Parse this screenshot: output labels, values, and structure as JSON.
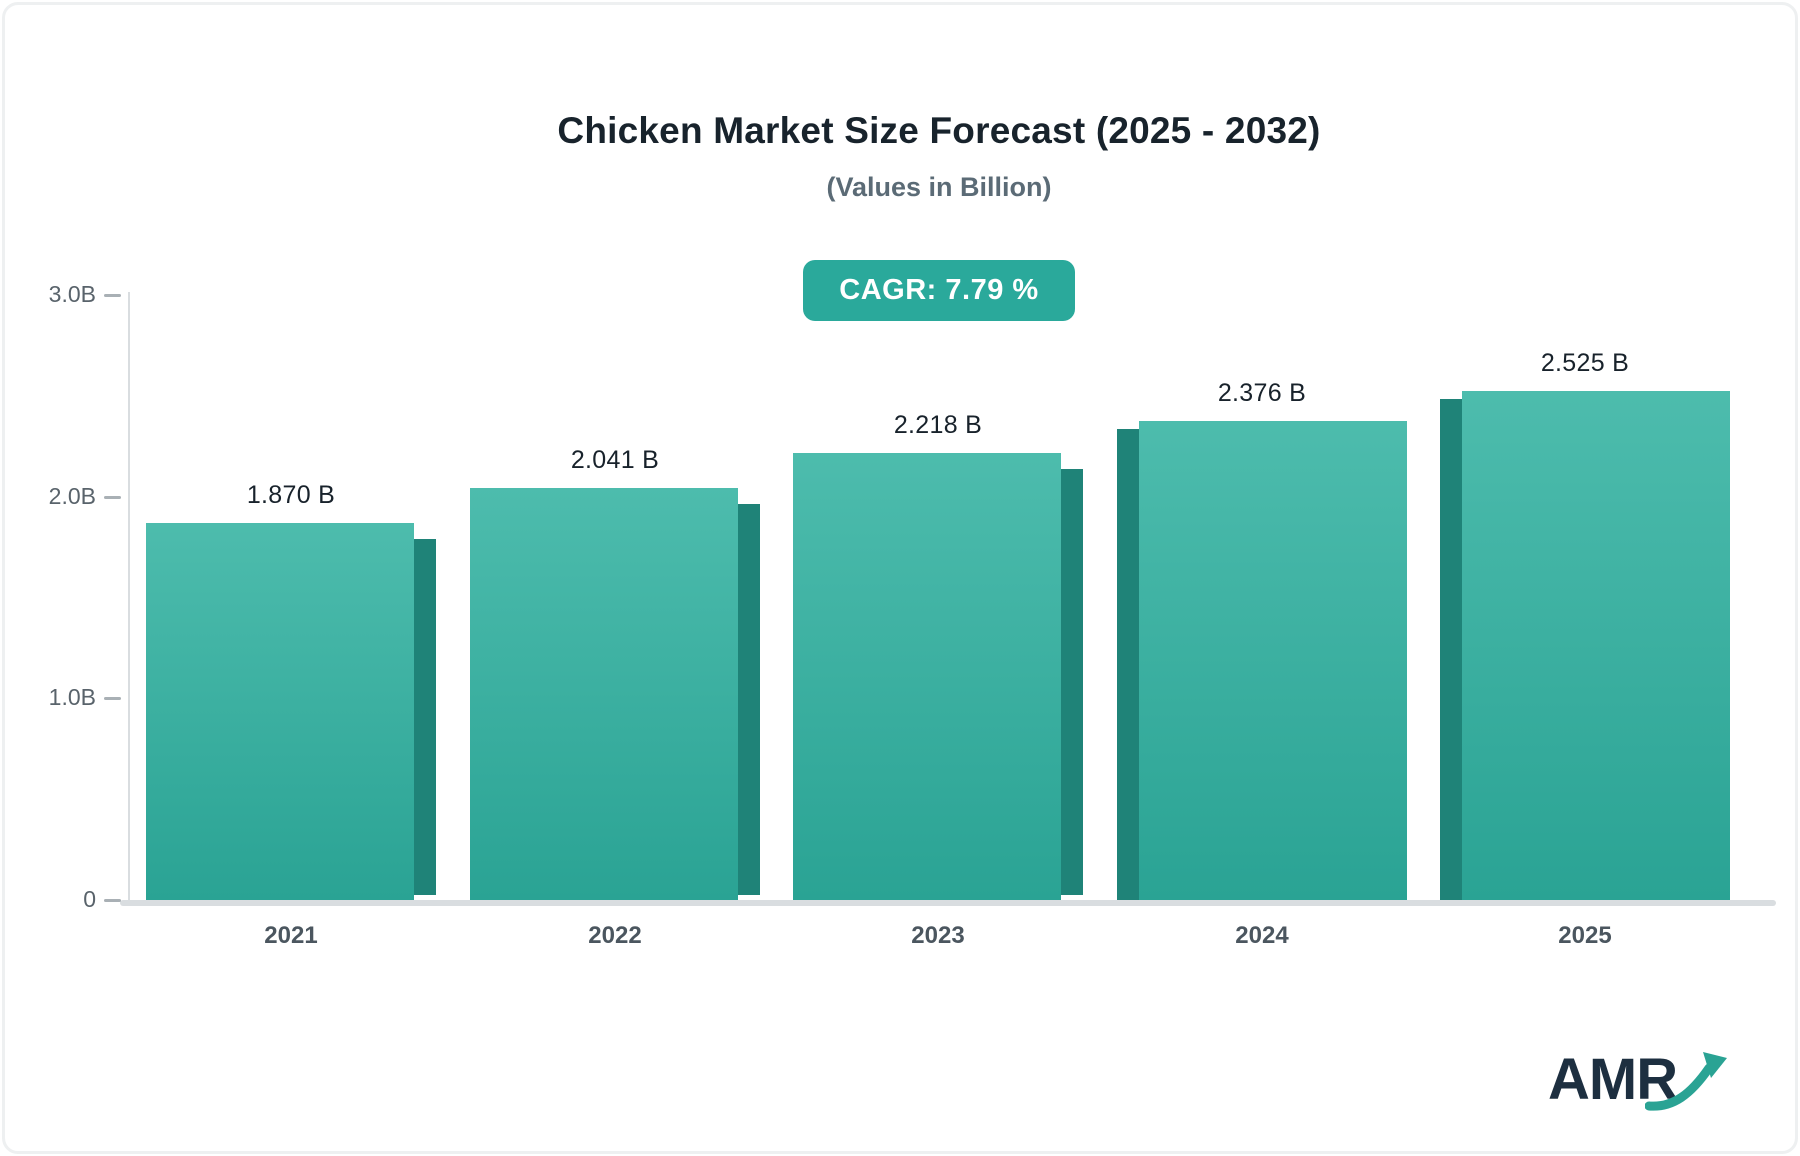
{
  "chart_data": {
    "type": "bar",
    "title": "Chicken Market Size Forecast (2025 - 2032)",
    "subtitle": "(Values in Billion)",
    "badge": "CAGR: 7.79 %",
    "categories": [
      "2021",
      "2022",
      "2023",
      "2024",
      "2025"
    ],
    "values": [
      1.87,
      2.041,
      2.218,
      2.376,
      2.525
    ],
    "value_labels": [
      "1.870 B",
      "2.041 B",
      "2.218 B",
      "2.376 B",
      "2.525 B"
    ],
    "yticks": [
      {
        "label": "3.0B",
        "value": 3.0
      },
      {
        "label": "2.0B",
        "value": 2.0
      },
      {
        "label": "1.0B",
        "value": 1.0
      },
      {
        "label": "0",
        "value": 0.0
      }
    ],
    "ylim": [
      0,
      3.0
    ],
    "grid": false,
    "legend": false,
    "colors": {
      "bar_top": "#4dbcad",
      "bar_bottom": "#2aa394",
      "bar_side": "#1f8378",
      "badge_bg": "#2aa99b",
      "badge_text": "#ffffff",
      "title_text": "#18232c",
      "subtitle_text": "#5b6b76",
      "axis_text": "#59636b",
      "axis_line": "#d9dde0",
      "value_text": "#18222b"
    }
  },
  "logo": {
    "text": "AMR",
    "color": "#1d2f40",
    "arrow_color": "#2aa394"
  }
}
